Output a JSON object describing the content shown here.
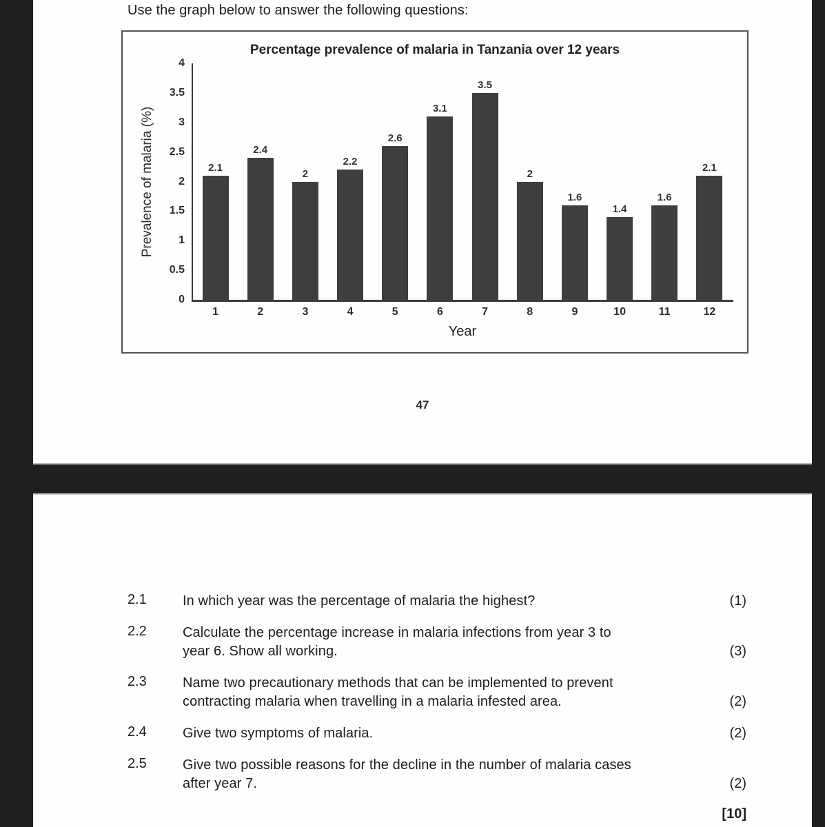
{
  "page1": {
    "instruction": "Use the graph below to answer the following questions:",
    "page_number": "47"
  },
  "chart_data": {
    "type": "bar",
    "title": "Percentage prevalence of malaria in Tanzania over 12 years",
    "xlabel": "Year",
    "ylabel": "Prevalence of malaria (%)",
    "categories": [
      "1",
      "2",
      "3",
      "4",
      "5",
      "6",
      "7",
      "8",
      "9",
      "10",
      "11",
      "12"
    ],
    "values": [
      2.1,
      2.4,
      2,
      2.2,
      2.6,
      3.1,
      3.5,
      2,
      1.6,
      1.4,
      1.6,
      2.1
    ],
    "ylim": [
      0,
      4
    ],
    "yticks": [
      "4",
      "3.5",
      "3",
      "2.5",
      "2",
      "1.5",
      "1",
      "0.5",
      "0"
    ],
    "grid": false,
    "legend_position": "none",
    "bar_color": "#3e3e3e"
  },
  "page2": {
    "questions": [
      {
        "number": "2.1",
        "lines": [
          "In which year was the percentage of malaria the highest?"
        ],
        "marks": "(1)"
      },
      {
        "number": "2.2",
        "lines": [
          "Calculate the percentage increase in malaria infections from year 3 to",
          "year 6. Show all working."
        ],
        "marks": "(3)"
      },
      {
        "number": "2.3",
        "lines": [
          "Name two precautionary methods that can be implemented to prevent",
          "contracting malaria when travelling in a malaria infested area."
        ],
        "marks": "(2)"
      },
      {
        "number": "2.4",
        "lines": [
          "Give two symptoms of malaria."
        ],
        "marks": "(2)"
      },
      {
        "number": "2.5",
        "lines": [
          "Give two possible reasons for the decline in the number of malaria cases",
          "after year 7."
        ],
        "marks": "(2)"
      }
    ],
    "total_marks": "[10]"
  },
  "colors": {
    "margin_black": "#1f1f1f",
    "page_white": "#fefefe",
    "bar": "#3e3e3e",
    "axis": "#3c3c3c",
    "chart_border": "#545454",
    "text": "#1d1d1d"
  }
}
